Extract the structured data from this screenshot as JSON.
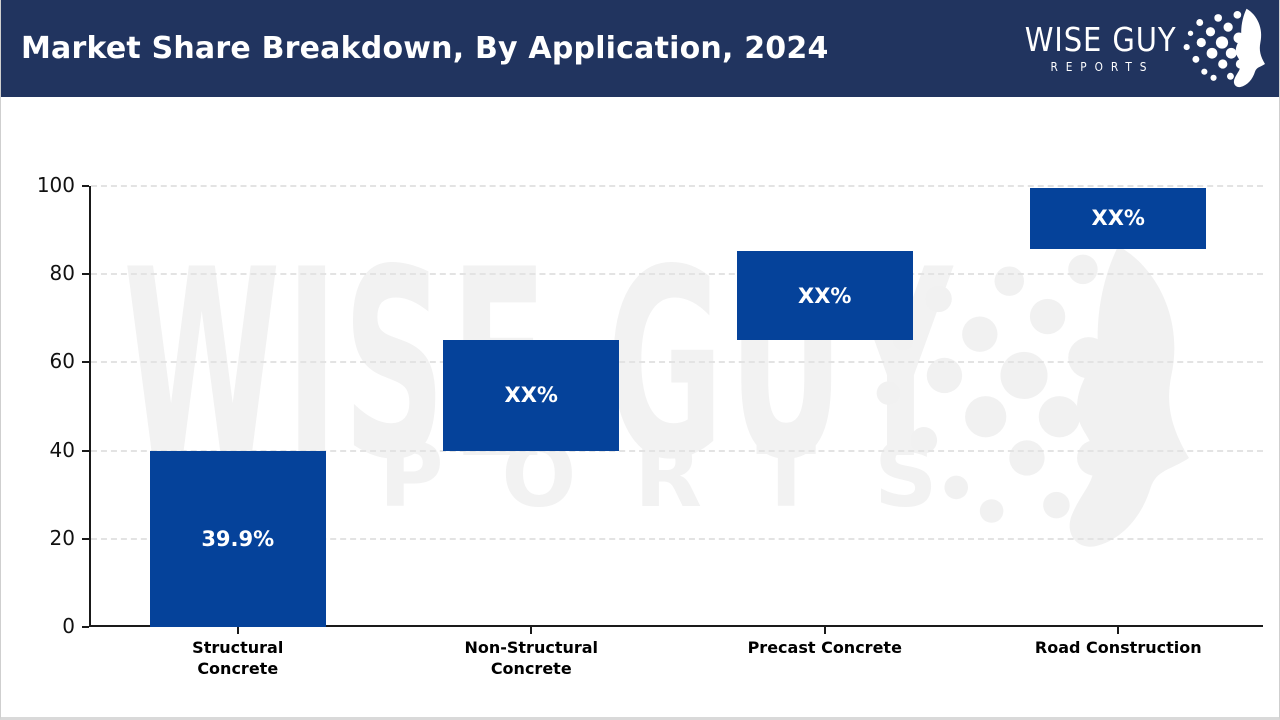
{
  "header": {
    "title": "Market Share Breakdown, By Application, 2024",
    "logo": {
      "line1": "WISE GUY",
      "line2": "REPORTS"
    }
  },
  "watermark": {
    "line1": "WISE GUY",
    "line2": "PORTS"
  },
  "colors": {
    "header_bg": "#21345f",
    "bar": "#05429a",
    "bar_label": "#ffffff",
    "grid": "#e3e3e3",
    "axis": "#1a1a1a",
    "watermark": "#f2f2f2"
  },
  "chart_data": {
    "type": "bar",
    "subtype": "floating-segment-breakdown",
    "title": "Market Share Breakdown, By Application, 2024",
    "categories": [
      "Structural Concrete",
      "Non-Structural Concrete",
      "Precast Concrete",
      "Road Construction"
    ],
    "categories_lines": [
      [
        "Structural",
        "Concrete"
      ],
      [
        "Non-Structural",
        "Concrete"
      ],
      [
        "Precast Concrete"
      ],
      [
        "Road Construction"
      ]
    ],
    "segments": [
      {
        "category": "Structural Concrete",
        "label": "39.9%",
        "from": 0,
        "to": 40,
        "value_pct": 39.9
      },
      {
        "category": "Non-Structural Concrete",
        "label": "XX%",
        "from": 40,
        "to": 65,
        "value_pct": null
      },
      {
        "category": "Precast Concrete",
        "label": "XX%",
        "from": 65,
        "to": 85.3,
        "value_pct": null
      },
      {
        "category": "Road Construction",
        "label": "XX%",
        "from": 85.7,
        "to": 99.6,
        "value_pct": null
      }
    ],
    "y_ticks": [
      0,
      20,
      40,
      60,
      80,
      100
    ],
    "y_tick_labels": [
      "0",
      "20",
      "40",
      "60",
      "80",
      "100"
    ],
    "ylim": [
      0,
      100
    ],
    "xlabel": "",
    "ylabel": "",
    "grid": "dashed-horizontal",
    "legend": "none"
  }
}
